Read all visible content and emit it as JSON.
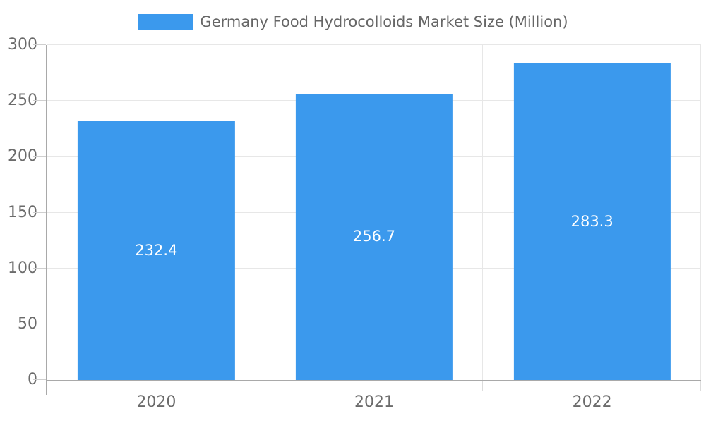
{
  "legend": {
    "label": "Germany Food Hydrocolloids Market Size (Million)"
  },
  "chart_data": {
    "type": "bar",
    "title": "Germany Food Hydrocolloids Market Size (Million)",
    "categories": [
      "2020",
      "2021",
      "2022"
    ],
    "values": [
      232.4,
      256.7,
      283.3
    ],
    "value_labels": [
      "232.4",
      "256.7",
      "283.3"
    ],
    "xlabel": "",
    "ylabel": "",
    "ylim": [
      0,
      300
    ],
    "yticks": [
      0,
      50,
      100,
      150,
      200,
      250,
      300
    ],
    "grid": true,
    "legend_position": "top",
    "value_labels_position": "center-of-bar"
  },
  "colors": {
    "bar": "#3b99ed",
    "grid": "#e7e7e7",
    "axis": "#a9a9a9",
    "ytick_mark": "#cfcfcf",
    "xtick_mark": "#dcdcdc",
    "tick_text": "#6b6b6b",
    "legend_text": "#666666",
    "value_text": "#ffffff",
    "background": "#ffffff"
  }
}
